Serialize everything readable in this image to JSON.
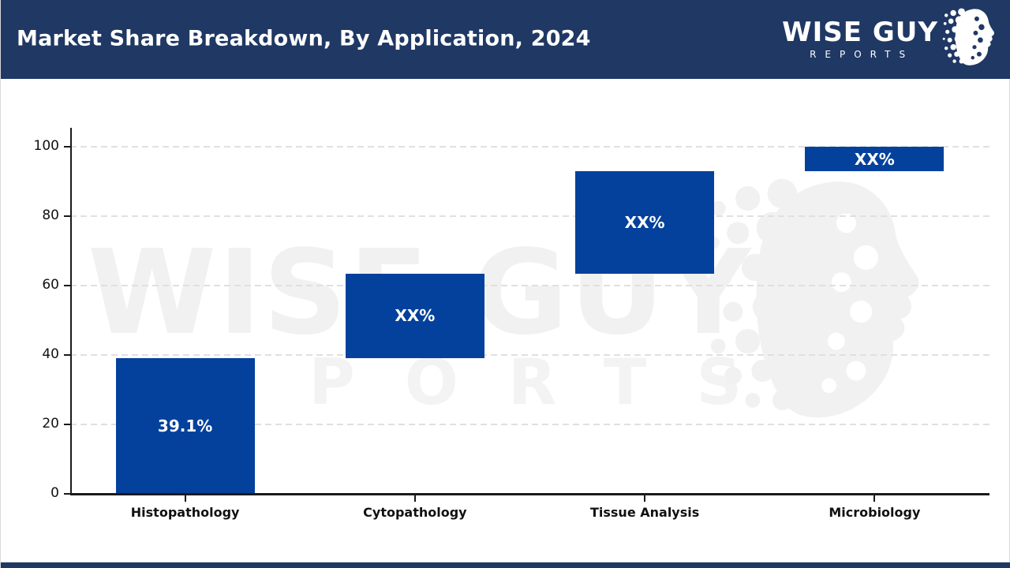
{
  "header": {
    "title": "Market Share Breakdown, By Application, 2024"
  },
  "logo": {
    "line1": "WISE GUY",
    "line2": "REPORTS",
    "face_icon": "dotted-head-profile"
  },
  "watermark": {
    "line1": "WISE GUY",
    "line2": "REPORTS",
    "face_icon": "dotted-head-profile"
  },
  "chart_data": {
    "type": "bar",
    "subtype": "waterfall",
    "title": "Market Share Breakdown, By Application, 2024",
    "categories": [
      "Histopathology",
      "Cytopathology",
      "Tissue Analysis",
      "Microbiology"
    ],
    "segments": [
      {
        "category": "Histopathology",
        "start": 0,
        "end": 39.1,
        "label": "39.1%"
      },
      {
        "category": "Cytopathology",
        "start": 39.1,
        "end": 63.4,
        "label": "XX%"
      },
      {
        "category": "Tissue Analysis",
        "start": 63.4,
        "end": 92.9,
        "label": "XX%"
      },
      {
        "category": "Microbiology",
        "start": 92.9,
        "end": 100,
        "label": "XX%"
      }
    ],
    "ylim": [
      0,
      100
    ],
    "yticks": [
      0,
      20,
      40,
      60,
      80,
      100
    ],
    "xlabel": "",
    "ylabel": "",
    "grid": "horizontal-dashed",
    "legend": "none"
  },
  "colors": {
    "header_bg": "#1f3864",
    "footer_bg": "#1f3864",
    "bar": "#04419c",
    "bar_label": "#ffffff",
    "grid": "#e0e0e0",
    "axis": "#1a1a1a",
    "watermark": "#f1f1f1"
  }
}
